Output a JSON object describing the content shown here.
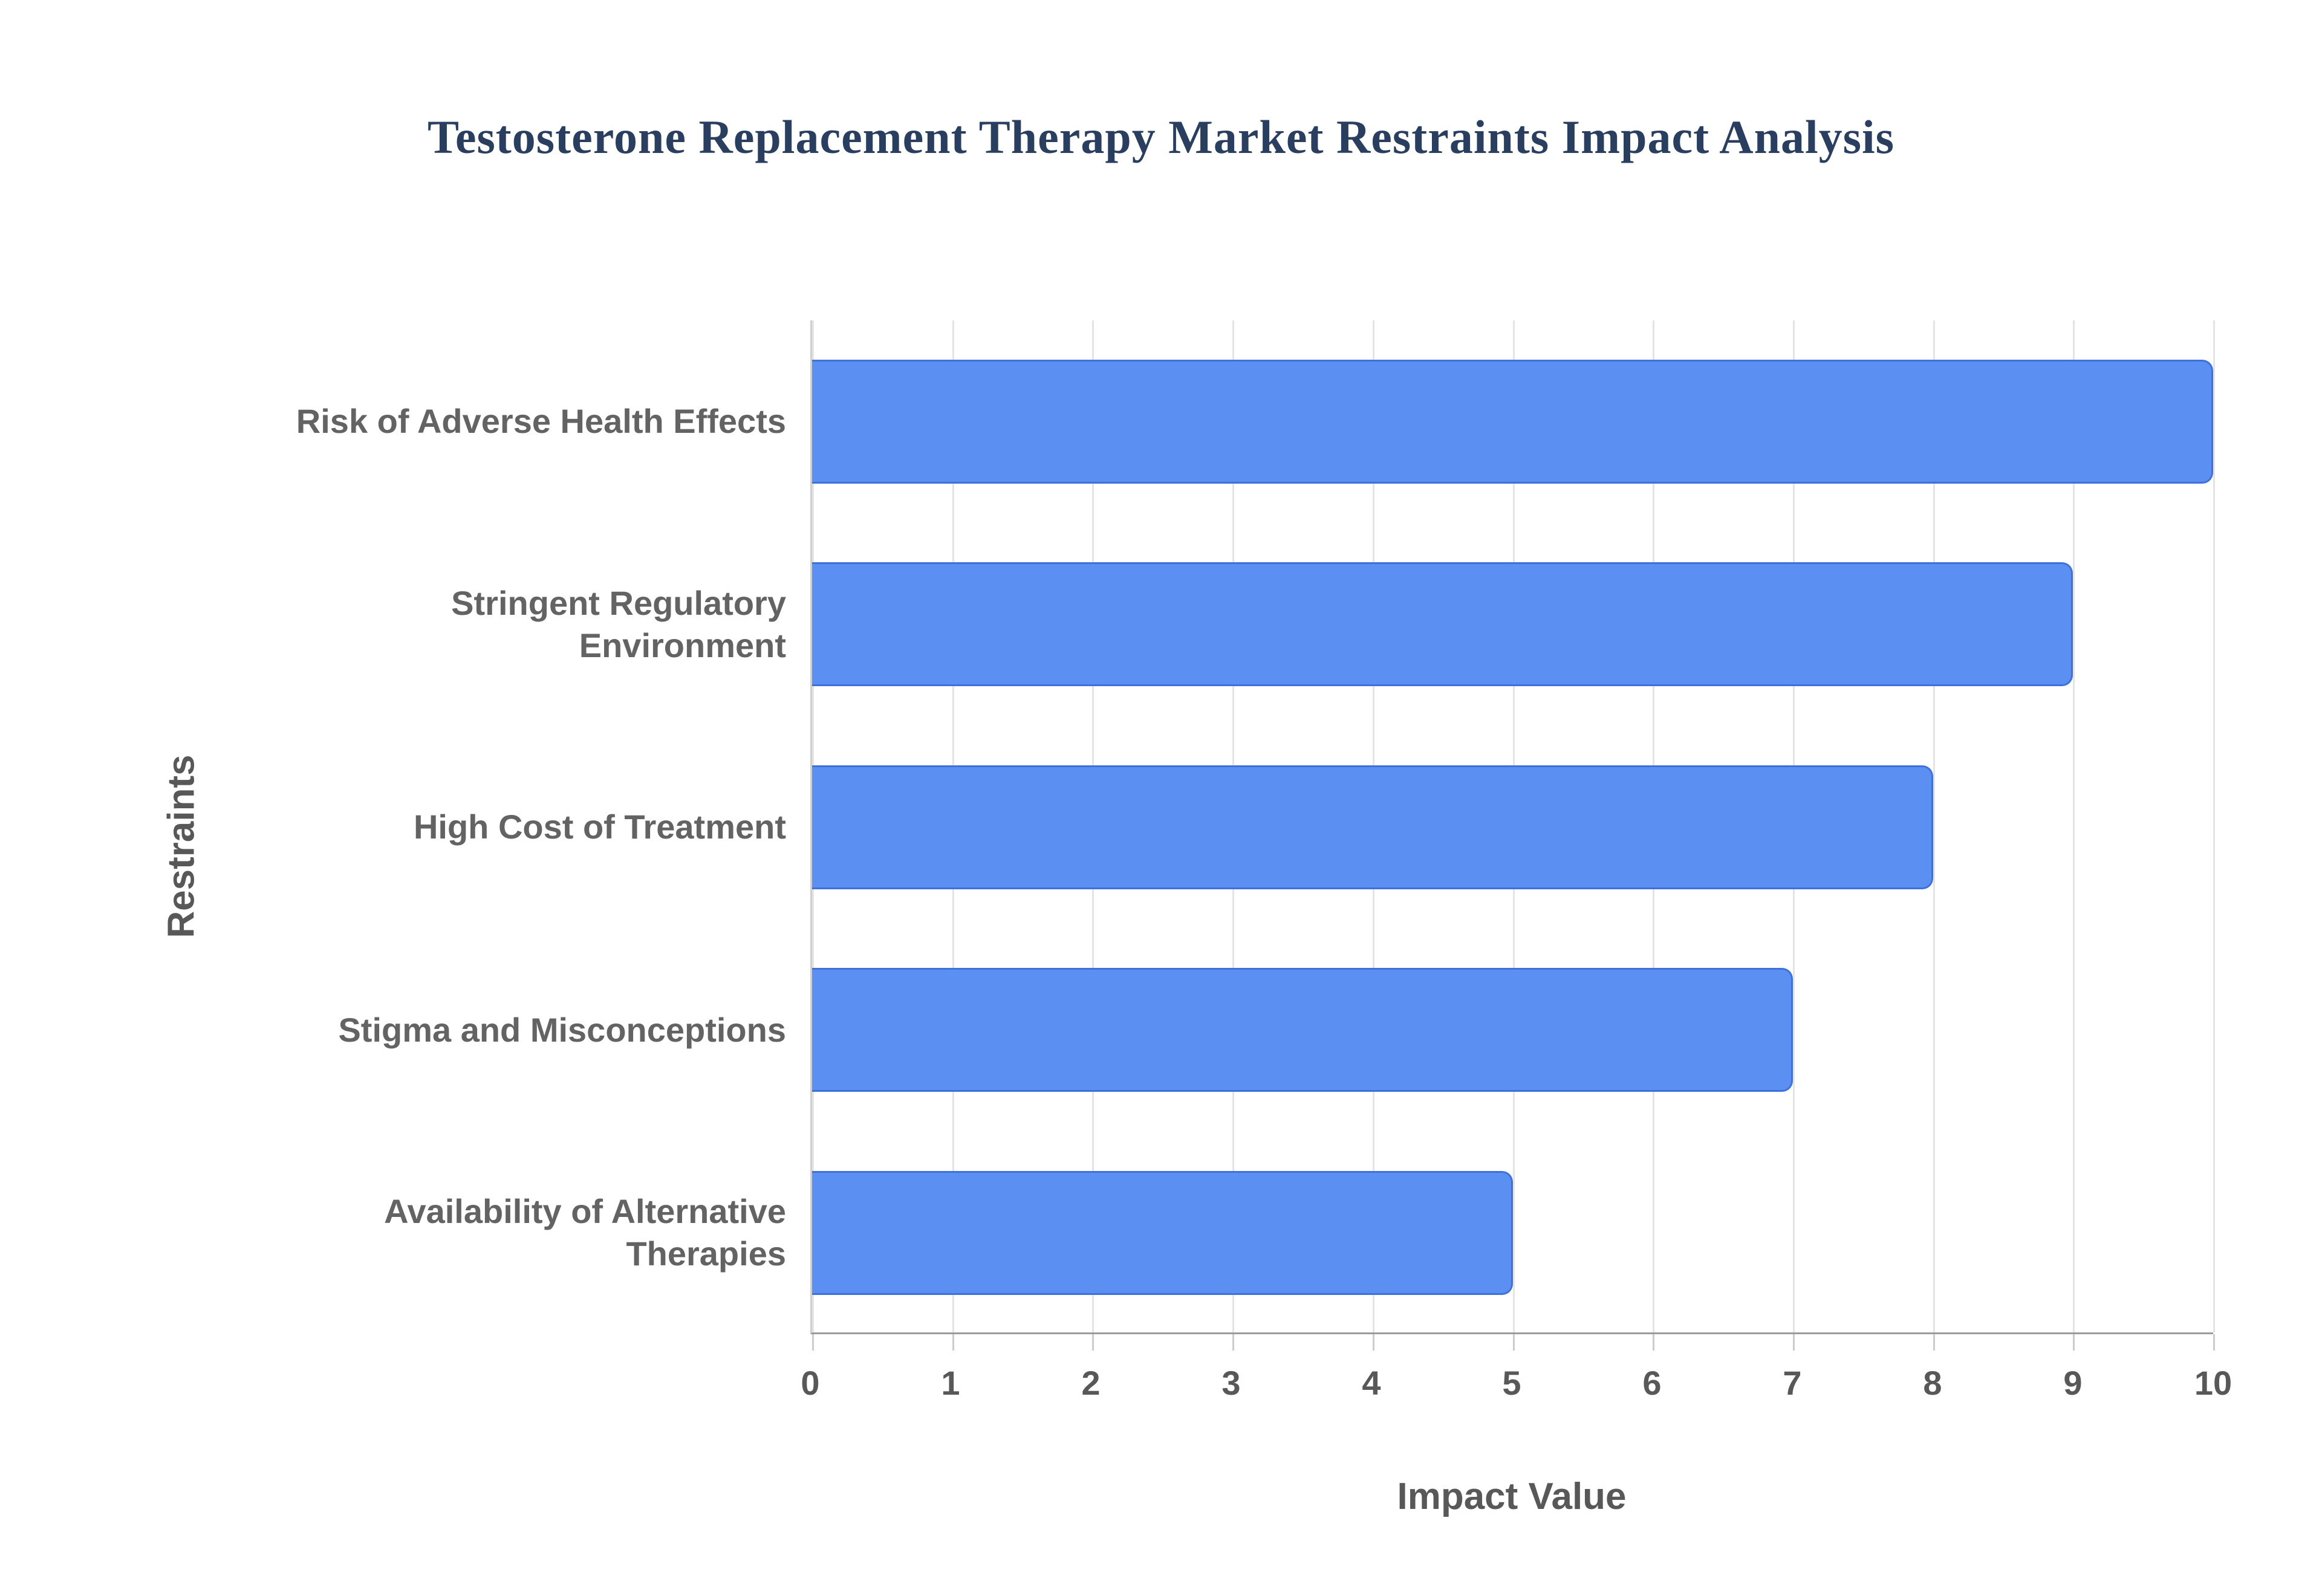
{
  "chart_data": {
    "type": "bar",
    "orientation": "horizontal",
    "title": "Testosterone Replacement Therapy Market Restraints Impact Analysis",
    "xlabel": "Impact Value",
    "ylabel": "Restraints",
    "categories": [
      "Risk of Adverse Health Effects",
      "Stringent Regulatory Environment",
      "High Cost of Treatment",
      "Stigma and Misconceptions",
      "Availability of Alternative Therapies"
    ],
    "categories_wrapped": [
      "Risk of Adverse Health Effects",
      "Stringent Regulatory\nEnvironment",
      "High Cost of Treatment",
      "Stigma and Misconceptions",
      "Availability of Alternative\nTherapies"
    ],
    "values": [
      10,
      9,
      8,
      7,
      5
    ],
    "xlim": [
      0,
      10
    ],
    "xticks": [
      "0",
      "1",
      "2",
      "3",
      "4",
      "5",
      "6",
      "7",
      "8",
      "9",
      "10"
    ],
    "grid": true,
    "legend": "none",
    "colors": {
      "bar_fill": "#5b8ff1",
      "bar_border": "#3f71dd",
      "title_text": "#2a3f5f",
      "axis_text": "#636363",
      "gridline": "#e4e4e4",
      "axis_line": "#9b9b9b"
    }
  }
}
